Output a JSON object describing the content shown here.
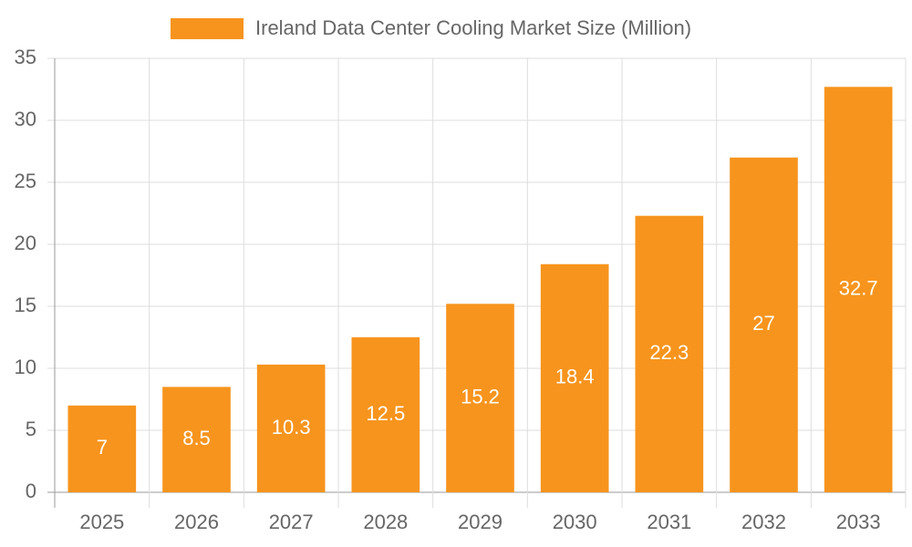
{
  "chart_data": {
    "type": "bar",
    "categories": [
      "2025",
      "2026",
      "2027",
      "2028",
      "2029",
      "2030",
      "2031",
      "2032",
      "2033"
    ],
    "series": [
      {
        "name": "Ireland Data Center Cooling Market Size (Million)",
        "color": "#f7941d",
        "values": [
          7,
          8.5,
          10.3,
          12.5,
          15.2,
          18.4,
          22.3,
          27,
          32.7
        ]
      }
    ],
    "ylim": [
      0,
      35
    ],
    "yticks": [
      0,
      5,
      10,
      15,
      20,
      25,
      30,
      35
    ],
    "grid": true,
    "data_labels": true,
    "legend": "top"
  }
}
